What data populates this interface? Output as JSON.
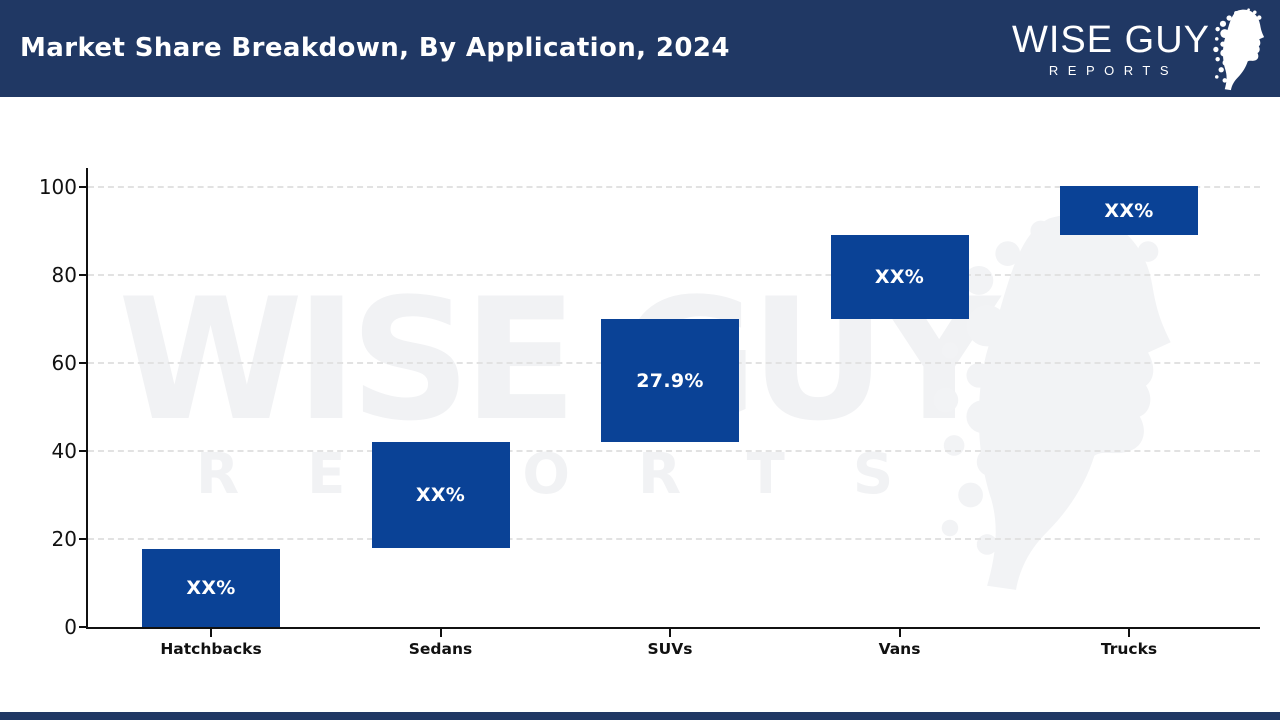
{
  "header": {
    "title": "Market Share Breakdown, By Application, 2024",
    "logo": {
      "line1": "WISE GUY",
      "line2": "REPORTS"
    },
    "bg_color": "#203864"
  },
  "watermark": {
    "line1": "WISE GUY",
    "line2": "REPORTS"
  },
  "chart_data": {
    "type": "bar",
    "subtype": "floating-waterfall",
    "title": "Market Share Breakdown, By Application, 2024",
    "categories": [
      "Hatchbacks",
      "Sedans",
      "SUVs",
      "Vans",
      "Trucks"
    ],
    "segments": [
      {
        "category": "Hatchbacks",
        "from": 0,
        "to": 17.7,
        "label": "XX%"
      },
      {
        "category": "Sedans",
        "from": 18,
        "to": 42,
        "label": "XX%"
      },
      {
        "category": "SUVs",
        "from": 42,
        "to": 69.9,
        "label": "27.9%"
      },
      {
        "category": "Vans",
        "from": 70,
        "to": 89.1,
        "label": "XX%"
      },
      {
        "category": "Trucks",
        "from": 89.1,
        "to": 100.2,
        "label": "XX%"
      }
    ],
    "yticks": [
      0,
      20,
      40,
      60,
      80,
      100
    ],
    "ylim": [
      0,
      105
    ],
    "xlabel": "",
    "ylabel": "",
    "grid": "horizontal-dashed",
    "legend": "none",
    "bar_color": "#0A4296",
    "bar_label_color": "#ffffff",
    "axis_color": "#111111"
  },
  "footer": {
    "bg_color": "#203864"
  }
}
